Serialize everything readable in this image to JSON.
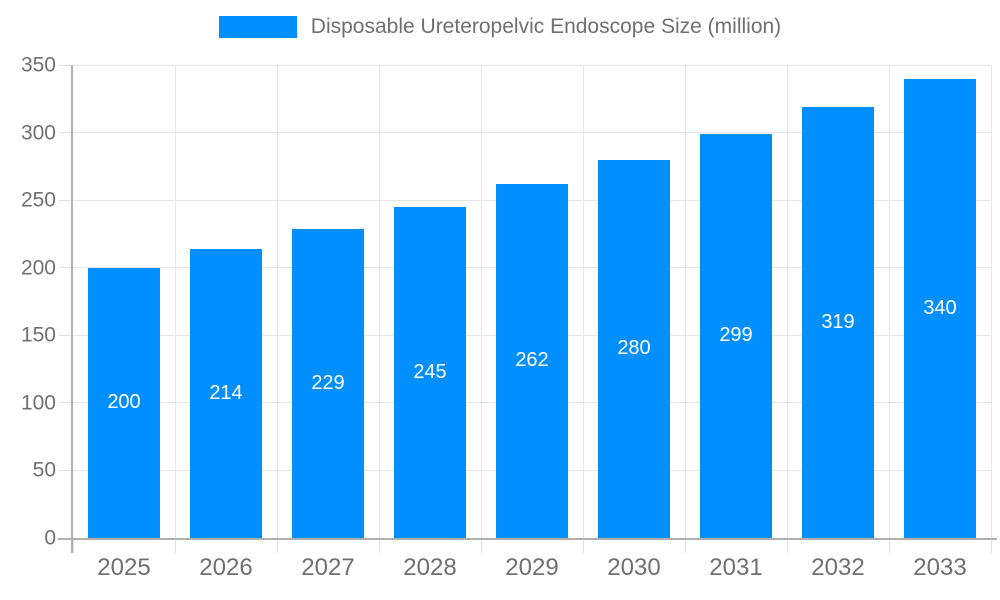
{
  "legend": {
    "label": "Disposable Ureteropelvic Endoscope Size (million)"
  },
  "colors": {
    "bar": "#018FFD",
    "axis_line": "#B0B0B0",
    "gridline": "#E6E6E6",
    "tick": "#E0E0E0",
    "tick_label": "#707070",
    "value_label": "#FFFFFF",
    "background": "#FFFFFF"
  },
  "chart_data": {
    "type": "bar",
    "title": "Disposable Ureteropelvic Endoscope Size (million)",
    "categories": [
      "2025",
      "2026",
      "2027",
      "2028",
      "2029",
      "2030",
      "2031",
      "2032",
      "2033"
    ],
    "values": [
      200,
      214,
      229,
      245,
      262,
      280,
      299,
      319,
      340
    ],
    "xlabel": "",
    "ylabel": "",
    "ylim": [
      0,
      350
    ],
    "yticks": [
      0,
      50,
      100,
      150,
      200,
      250,
      300,
      350
    ],
    "grid": true,
    "legend_position": "top",
    "value_labels_position": "inside-center"
  }
}
